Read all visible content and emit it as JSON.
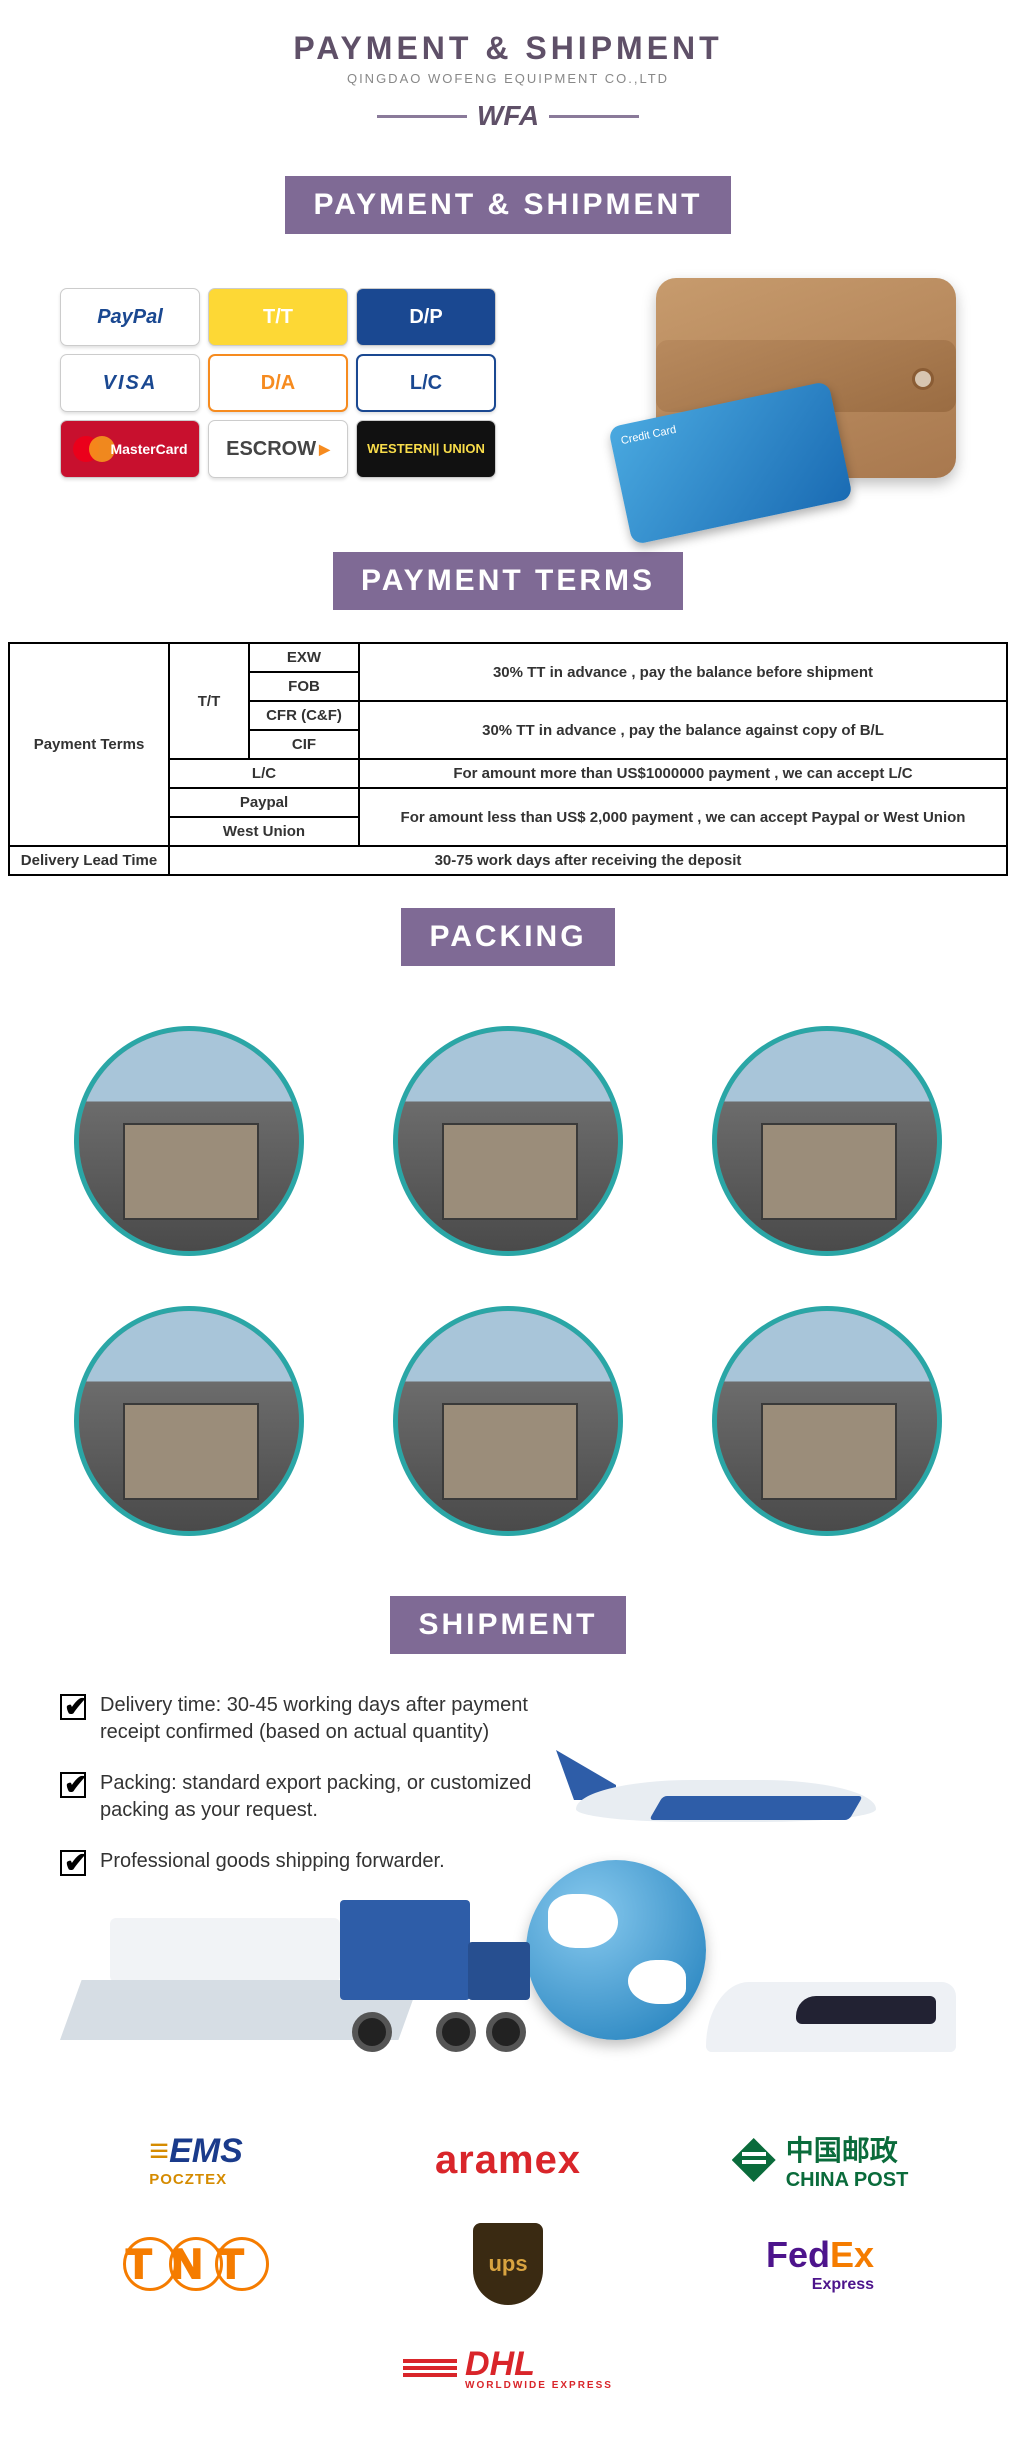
{
  "colors": {
    "banner_bg": "#7f6a95",
    "banner_text": "#ffffff",
    "header_title": "#5f5068",
    "packing_ring": "#2aa6a6"
  },
  "header": {
    "title": "PAYMENT & SHIPMENT",
    "subtitle": "QINGDAO WOFENG EQUIPMENT CO.,LTD",
    "logo": "WFA"
  },
  "banners": {
    "payment_shipment": "PAYMENT & SHIPMENT",
    "payment_terms": "PAYMENT TERMS",
    "packing": "PACKING",
    "shipment": "SHIPMENT"
  },
  "payment_badges": [
    {
      "label": "PayPal",
      "cls": "b-paypal"
    },
    {
      "label": "T/T",
      "cls": "b-tt"
    },
    {
      "label": "D/P",
      "cls": "b-dp"
    },
    {
      "label": "VISA",
      "cls": "b-visa"
    },
    {
      "label": "D/A",
      "cls": "b-da"
    },
    {
      "label": "L/C",
      "cls": "b-lc"
    },
    {
      "label": "MasterCard",
      "cls": "b-mc"
    },
    {
      "label": "ESCROW",
      "cls": "b-escrow"
    },
    {
      "label": "WESTERN||\nUNION",
      "cls": "b-wu"
    }
  ],
  "wallet": {
    "card_text": "Credit Card"
  },
  "terms_table": {
    "row_header": "Payment Terms",
    "tt": "T/T",
    "tt_terms": [
      "EXW",
      "FOB",
      "CFR (C&F)",
      "CIF"
    ],
    "tt_desc1": "30% TT in advance , pay the balance before shipment",
    "tt_desc2": "30% TT in advance , pay the balance against copy of B/L",
    "lc": "L/C",
    "lc_desc": "For amount more than US$1000000 payment , we can accept L/C",
    "paypal": "Paypal",
    "wu": "West Union",
    "small_desc": "For amount less than US$ 2,000 payment , we can accept Paypal or West Union",
    "delivery_label": "Delivery Lead Time",
    "delivery_desc": "30-75 work days after receiving the deposit"
  },
  "packing_images": 6,
  "shipment_points": [
    "Delivery time: 30-45  working days after payment receipt confirmed (based on actual quantity)",
    "Packing: standard export packing, or customized packing as your request.",
    "Professional goods shipping forwarder."
  ],
  "carriers": {
    "ems": {
      "main": "EMS",
      "sub": "POCZTEX"
    },
    "aramex": "aramex",
    "chinapost": {
      "cn": "中国邮政",
      "en": "CHINA POST"
    },
    "tnt": "TNT",
    "ups": "ups",
    "fedex": {
      "fed": "Fed",
      "ex": "Ex",
      "sub": "Express"
    },
    "dhl": {
      "main": "DHL",
      "sub": "WORLDWIDE EXPRESS"
    }
  }
}
